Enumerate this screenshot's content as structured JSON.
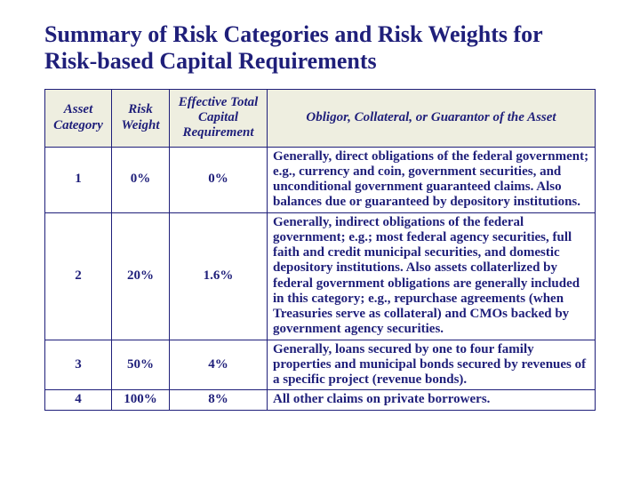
{
  "title": "Summary of Risk Categories and Risk Weights for Risk-based Capital Requirements",
  "columns": [
    "Asset Category",
    "Risk Weight",
    "Effective Total Capital Requirement",
    "Obligor, Collateral, or Guarantor of the Asset"
  ],
  "rows": [
    {
      "category": "1",
      "risk_weight": "0%",
      "effective": "0%",
      "obligor": "Generally, direct obligations of the federal government; e.g., currency and coin, government securities, and unconditional government guaranteed claims. Also balances due or guaranteed by depository institutions."
    },
    {
      "category": "2",
      "risk_weight": "20%",
      "effective": "1.6%",
      "obligor": "Generally, indirect obligations of the federal government; e.g.; most federal agency securities, full faith and credit municipal securities, and domestic depository institutions.  Also assets collaterlized by federal government obligations are generally included in this category; e.g., repurchase agreements (when Treasuries serve as collateral) and CMOs backed by government agency securities."
    },
    {
      "category": "3",
      "risk_weight": "50%",
      "effective": "4%",
      "obligor": "Generally, loans secured by one to four family properties and municipal bonds secured by revenues of a specific project (revenue bonds)."
    },
    {
      "category": "4",
      "risk_weight": "100%",
      "effective": "8%",
      "obligor": "All other claims on private borrowers."
    }
  ],
  "colors": {
    "text": "#1f1f7a",
    "header_bg": "#eeeee0",
    "border": "#1f1f7a",
    "page_bg": "#ffffff"
  }
}
